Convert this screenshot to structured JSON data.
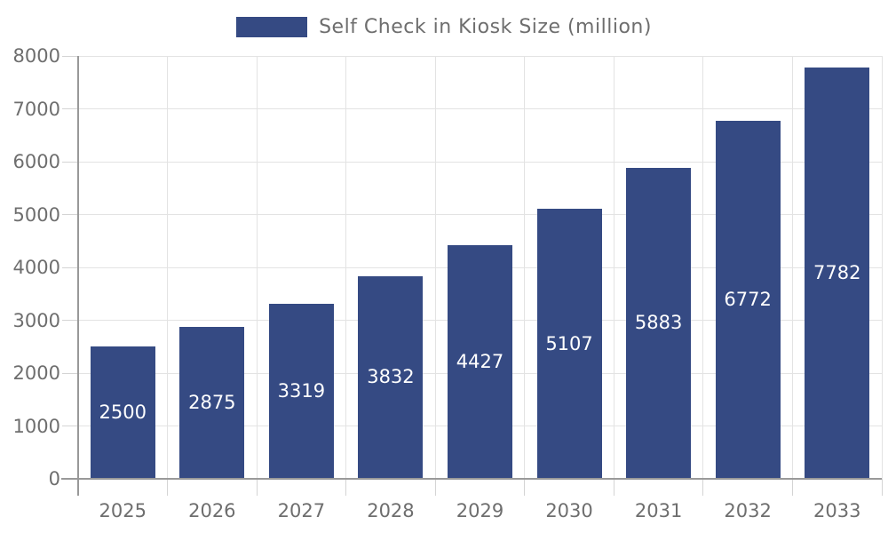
{
  "legend": {
    "label": "Self Check in Kiosk Size (million)"
  },
  "chart_data": {
    "type": "bar",
    "title": "Self Check in Kiosk Size (million)",
    "categories": [
      "2025",
      "2026",
      "2027",
      "2028",
      "2029",
      "2030",
      "2031",
      "2032",
      "2033"
    ],
    "values": [
      2500,
      2875,
      3319,
      3832,
      4427,
      5107,
      5883,
      6772,
      7782
    ],
    "xlabel": "",
    "ylabel": "",
    "ylim": [
      0,
      8000
    ],
    "ytick_step": 1000,
    "y_ticks": [
      0,
      1000,
      2000,
      3000,
      4000,
      5000,
      6000,
      7000,
      8000
    ],
    "grid": true,
    "legend_position": "top-center",
    "colors": {
      "bar": "#354a83",
      "value_label": "#ffffff",
      "grid_line": "#e3e3e3",
      "tick_line": "#d4d4d4",
      "axis_line": "#999999",
      "axis_text": "#6e6e6e"
    }
  }
}
